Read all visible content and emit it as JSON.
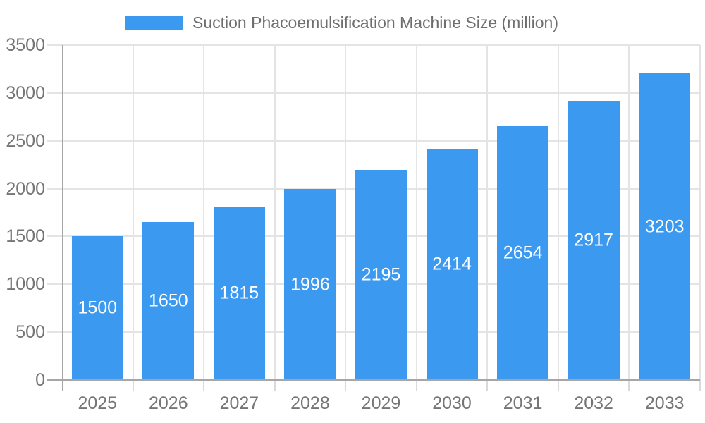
{
  "legend": {
    "label": "Suction Phacoemulsification Machine Size (million)"
  },
  "colors": {
    "bar": "#3B99F0",
    "bar_label_text": "#FFFFFF",
    "axis_line": "#A6A6A6",
    "grid_line": "#E4E4E4",
    "x_tick_line": "#DADADA",
    "axis_text": "#757575",
    "legend_text": "#6E6E6E",
    "background": "#FFFFFF"
  },
  "chart_data": {
    "type": "bar",
    "title": "",
    "xlabel": "",
    "ylabel": "",
    "categories": [
      "2025",
      "2026",
      "2027",
      "2028",
      "2029",
      "2030",
      "2031",
      "2032",
      "2033"
    ],
    "series": [
      {
        "name": "Suction Phacoemulsification Machine Size (million)",
        "values": [
          1500,
          1650,
          1815,
          1996,
          2195,
          2414,
          2654,
          2917,
          3203
        ]
      }
    ],
    "bar_value_labels": [
      "1500",
      "1650",
      "1815",
      "1996",
      "2195",
      "2414",
      "2654",
      "2917",
      "3203"
    ],
    "ylim": [
      0,
      3500
    ],
    "yticks": [
      0,
      500,
      1000,
      1500,
      2000,
      2500,
      3000,
      3500
    ],
    "grid": true,
    "legend_position": "top",
    "bar_labels_visible": true
  }
}
